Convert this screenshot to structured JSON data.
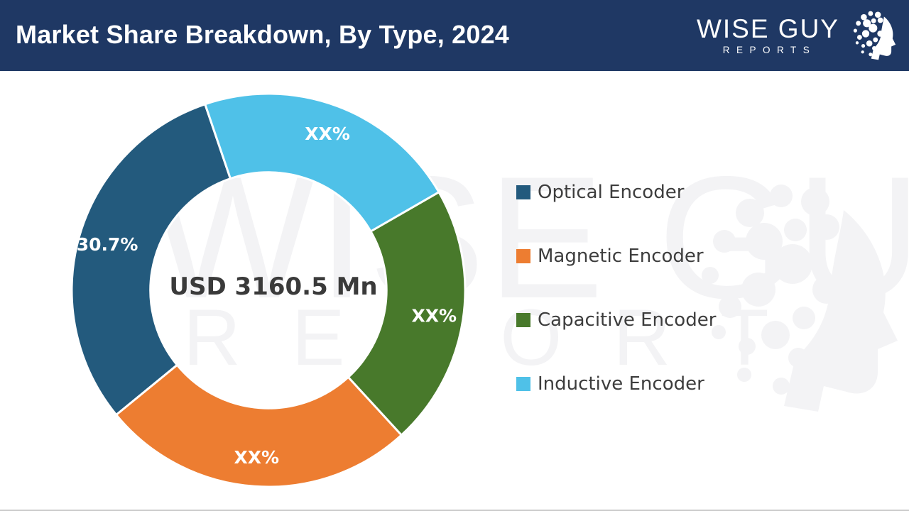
{
  "header": {
    "title": "Market Share Breakdown, By Type, 2024",
    "logo": {
      "line1": "WISE GUY",
      "line2": "REPORTS"
    }
  },
  "watermark": {
    "line1": "WISE GUY",
    "line2": "REPORTS"
  },
  "chart_data": {
    "type": "pie",
    "subtype": "donut",
    "title": "Market Share Breakdown, By Type, 2024",
    "center_label": "USD 3160.5 Mn",
    "start_angle_deg": 108.8,
    "direction": "counterclockwise",
    "inner_radius_ratio": 0.6,
    "legend_position": "right",
    "segments": [
      {
        "name": "Optical Encoder",
        "value_pct": 30.7,
        "display_label": "30.7%",
        "color": "#235a7d"
      },
      {
        "name": "Magnetic Encoder",
        "value_pct": 25.9,
        "display_label": "XX%",
        "color": "#ed7d31"
      },
      {
        "name": "Capacitive Encoder",
        "value_pct": 21.5,
        "display_label": "XX%",
        "color": "#48792b"
      },
      {
        "name": "Inductive Encoder",
        "value_pct": 21.9,
        "display_label": "XX%",
        "color": "#4fc1e8"
      }
    ]
  },
  "colors": {
    "header_bg": "#1f3864",
    "title_text": "#ffffff",
    "center_text": "#3a3a3a",
    "legend_text": "#3d3d3d",
    "slice_label_text": "#ffffff",
    "watermark": "#f3f3f5",
    "bottom_border": "#cbcbcb"
  }
}
